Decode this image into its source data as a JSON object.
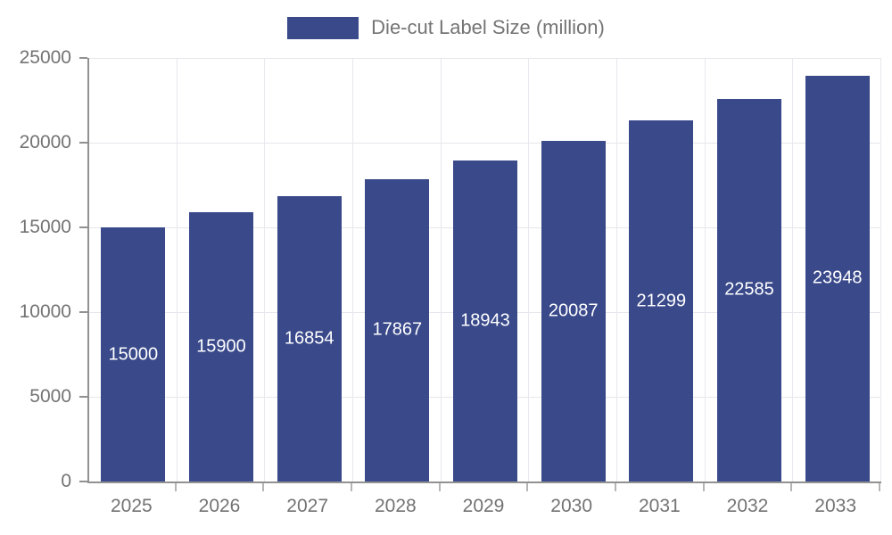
{
  "chart_data": {
    "type": "bar",
    "title": "Die-cut Label Size (million)",
    "legend": [
      "Die-cut Label Size (million)"
    ],
    "legend_position": "top",
    "categories": [
      "2025",
      "2026",
      "2027",
      "2028",
      "2029",
      "2030",
      "2031",
      "2032",
      "2033"
    ],
    "values": [
      15000,
      15900,
      16854,
      17867,
      18943,
      20087,
      21299,
      22585,
      23948
    ],
    "xlabel": "",
    "ylabel": "",
    "ylim": [
      0,
      25000
    ],
    "ytick_step": 5000,
    "ytick_labels": [
      "0",
      "5000",
      "10000",
      "15000",
      "20000",
      "25000"
    ],
    "grid": true,
    "value_labels_inside_bars": true,
    "colors": {
      "bar": "#39498A",
      "value_label": "#ffffff",
      "axis_line": "#919191",
      "grid_line": "#e6e6ec",
      "tick_text": "#737373",
      "legend_text": "#747474",
      "background": "#ffffff"
    }
  }
}
